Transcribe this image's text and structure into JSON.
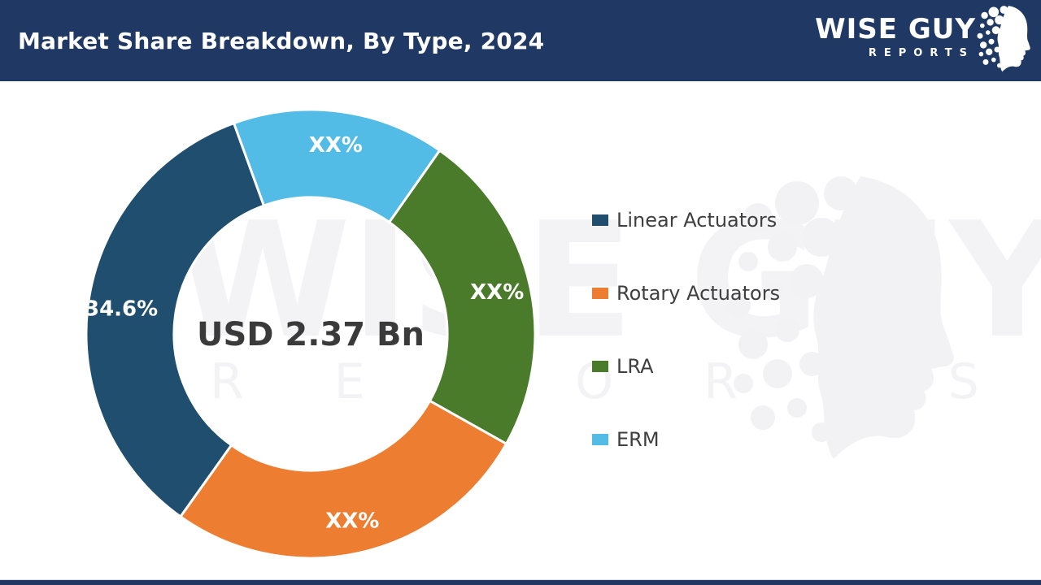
{
  "header": {
    "title": "Market Share Breakdown, By Type, 2024",
    "logo": {
      "line1": "WISE GUY",
      "line2": "REPORTS"
    }
  },
  "watermark": {
    "line1": "WISE GUY",
    "line2": "R E P O R T S"
  },
  "chart_data": {
    "type": "pie",
    "variant": "donut",
    "title": "Market Share Breakdown, By Type, 2024",
    "center_label": "USD 2.37 Bn",
    "start_angle_deg": 110,
    "direction": "ccw",
    "donut_hole_ratio": 0.61,
    "legend_position": "right",
    "segments": [
      {
        "name": "Linear Actuators",
        "value_pct": 34.6,
        "label": "34.6%",
        "color": "#1F4E6E"
      },
      {
        "name": "Rotary Actuators",
        "value_pct": 26.7,
        "label": "XX%",
        "color": "#ED7D31"
      },
      {
        "name": "LRA",
        "value_pct": 23.4,
        "label": "XX%",
        "color": "#4A7B2B"
      },
      {
        "name": "ERM",
        "value_pct": 15.3,
        "label": "XX%",
        "color": "#52BCE6"
      }
    ]
  },
  "icons": {
    "logo_face": "dotted-face-profile",
    "watermark_face": "dotted-face-profile"
  },
  "colors": {
    "header_bg": "#1F3864",
    "accent_navy": "#1F4E6E",
    "accent_orange": "#ED7D31",
    "accent_green": "#4A7B2B",
    "accent_lightblue": "#52BCE6",
    "watermark": "#F3F3F6",
    "text_dark": "#3A3A3A",
    "bottom_bar": "#1F3864"
  }
}
